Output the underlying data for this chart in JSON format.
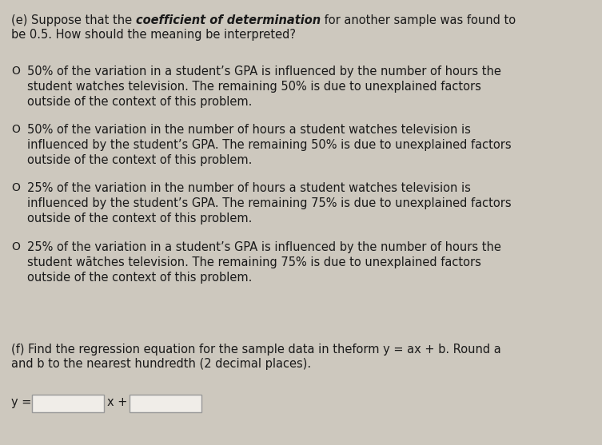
{
  "background_color": "#cdc8be",
  "text_color": "#1a1a1a",
  "title_normal1": "(e) Suppose that the ",
  "title_bold_italic": "coefficient of determination",
  "title_normal2": " for another sample was found to",
  "title_line2": "be 0.5. How should the meaning be interpreted?",
  "options": [
    "50% of the variation in a student’s GPA is influenced by the number of hours the\nstudent watches television. The remaining 50% is due to unexplained factors\noutside of the context of this problem.",
    "50% of the variation in the number of hours a student watches television is\ninfluenced by the student’s GPA. The remaining 50% is due to unexplained factors\noutside of the context of this problem.",
    "25% of the variation in the number of hours a student watches television is\ninfluenced by the student’s GPA. The remaining 75% is due to unexplained factors\noutside of the context of this problem.",
    "25% of the variation in a student’s GPA is influenced by the number of hours the\nstudent wātches television. The remaining 75% is due to unexplained factors\noutside of the context of this problem."
  ],
  "part_f_line1": "(f) Find the regression equation for the sample data in the⁠form y = ax + b. Round a",
  "part_f_line2": "and b to the nearest hundredth (2 decimal places).",
  "part_f_y_label": "y =",
  "part_f_x_label": "x +",
  "box_color": "#f0ede8",
  "font_size": 10.5,
  "fig_width": 7.53,
  "fig_height": 5.57,
  "dpi": 100
}
